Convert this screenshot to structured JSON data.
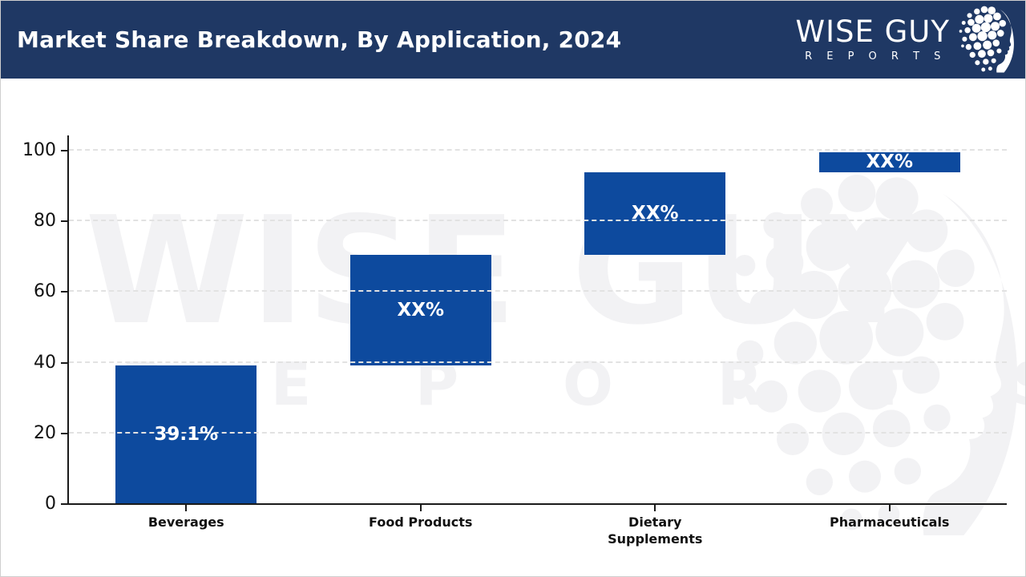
{
  "header": {
    "title": "Market Share Breakdown, By Application, 2024",
    "bg_color": "#1f3864",
    "logo": {
      "primary": "WISE GUY",
      "secondary": "R E P O R T S"
    }
  },
  "watermark": {
    "primary": "WISE GUY",
    "secondary": "R E P O R T S"
  },
  "chart_data": {
    "type": "bar",
    "subtype": "waterfall",
    "title": "Market Share Breakdown, By Application, 2024",
    "xlabel": "",
    "ylabel": "",
    "categories": [
      "Beverages",
      "Food Products",
      "Dietary Supplements",
      "Pharmaceuticals"
    ],
    "bars": [
      {
        "category": "Beverages",
        "start": 0,
        "end": 39.1,
        "label": "39.1%"
      },
      {
        "category": "Food Products",
        "start": 39.1,
        "end": 70.3,
        "label": "XX%"
      },
      {
        "category": "Dietary Supplements",
        "start": 70.3,
        "end": 93.7,
        "label": "XX%"
      },
      {
        "category": "Pharmaceuticals",
        "start": 93.7,
        "end": 99.4,
        "label": "XX%"
      }
    ],
    "yticks": [
      0,
      20,
      40,
      60,
      80,
      100
    ],
    "ylim": [
      0,
      104
    ],
    "bar_color": "#0d4a9e",
    "bar_label_color": "#ffffff",
    "grid": {
      "axis": "y",
      "style": "dashed",
      "color": "#e2e2e2"
    },
    "legend": false
  }
}
